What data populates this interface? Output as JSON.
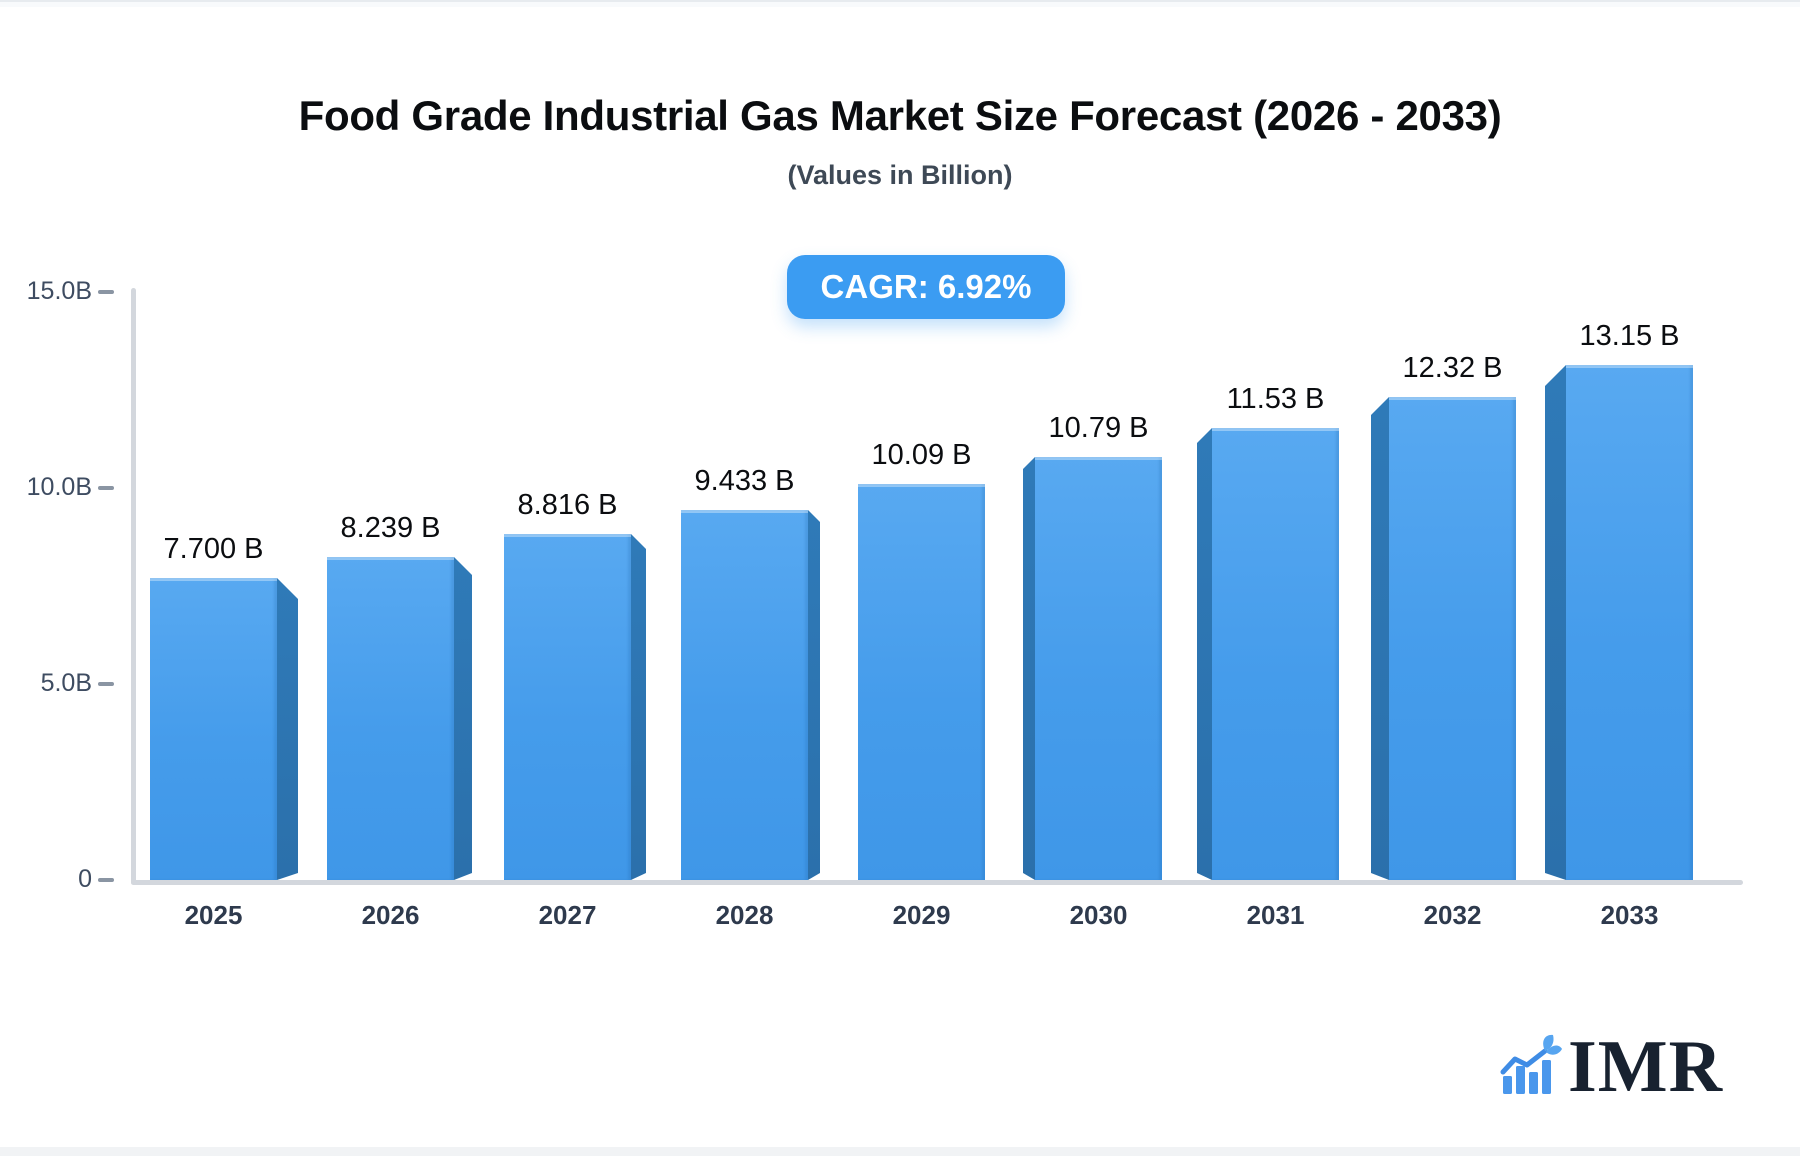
{
  "header": {
    "title": "Food Grade Industrial Gas Market Size Forecast (2026 - 2033)",
    "subtitle": "(Values in Billion)"
  },
  "badge": {
    "label": "CAGR: 6.92%",
    "bg_color": "#3b9cf2",
    "text_color": "#ffffff"
  },
  "chart_data": {
    "type": "bar",
    "title": "Food Grade Industrial Gas Market Size Forecast (2026 - 2033)",
    "subtitle": "(Values in Billion)",
    "xlabel": "",
    "ylabel": "",
    "categories": [
      "2025",
      "2026",
      "2027",
      "2028",
      "2029",
      "2030",
      "2031",
      "2032",
      "2033"
    ],
    "values": [
      7.7,
      8.239,
      8.816,
      9.433,
      10.09,
      10.79,
      11.53,
      12.32,
      13.15
    ],
    "value_labels": [
      "7.700 B",
      "8.239 B",
      "8.816 B",
      "9.433 B",
      "10.09 B",
      "10.79 B",
      "11.53 B",
      "12.32 B",
      "13.15 B"
    ],
    "ylim": [
      0,
      15
    ],
    "yticks": [
      {
        "value": 15,
        "label": "15.0B"
      },
      {
        "value": 10,
        "label": "10.0B"
      },
      {
        "value": 5,
        "label": "5.0B"
      },
      {
        "value": 0,
        "label": "0"
      }
    ],
    "grid": false,
    "legend": false,
    "style": "3d-perspective-bars",
    "bar_face_color_top": "#58a9f1",
    "bar_face_color_bottom": "#3f97e8",
    "bar_side_color": "#2d76b4",
    "axis_line_color": "#d3d7dd",
    "tick_mark_color": "#8a95a3",
    "y_label_color": "#3e4c61",
    "x_label_color": "#2e3a4d",
    "value_label_color": "#0b0d10"
  },
  "logo": {
    "text": "IMR",
    "icon": "bar-chart-growth-leaf-icon",
    "icon_color": "#4a97ec",
    "text_color": "#182230"
  }
}
